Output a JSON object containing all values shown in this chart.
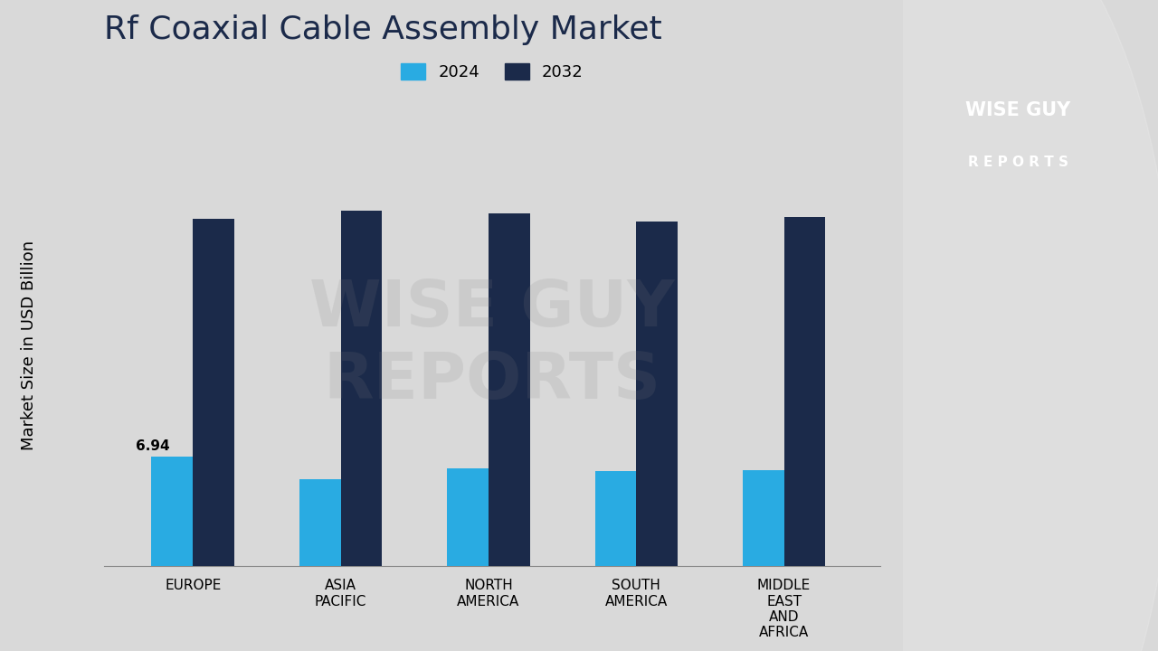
{
  "title": "Rf Coaxial Cable Assembly Market",
  "ylabel": "Market Size in USD Billion",
  "categories": [
    "EUROPE",
    "ASIA\nPACIFIC",
    "NORTH\nAMERICA",
    "SOUTH\nAMERICA",
    "MIDDLE\nEAST\nAND\nAFRICA"
  ],
  "values_2024": [
    6.94,
    5.5,
    6.2,
    6.0,
    6.1
  ],
  "values_2032": [
    22.0,
    22.5,
    22.3,
    21.8,
    22.1
  ],
  "color_2024": "#29ABE2",
  "color_2032": "#1B2A4A",
  "background_color": "#D9D9D9",
  "right_panel_color": "#1B2A4A",
  "title_color": "#1B2A4A",
  "annotation_value": "6.94",
  "annotation_index": 0,
  "legend_labels": [
    "2024",
    "2032"
  ],
  "bar_width": 0.28,
  "ylim": [
    0,
    28
  ],
  "title_fontsize": 26,
  "ylabel_fontsize": 13,
  "tick_fontsize": 11,
  "legend_fontsize": 13
}
